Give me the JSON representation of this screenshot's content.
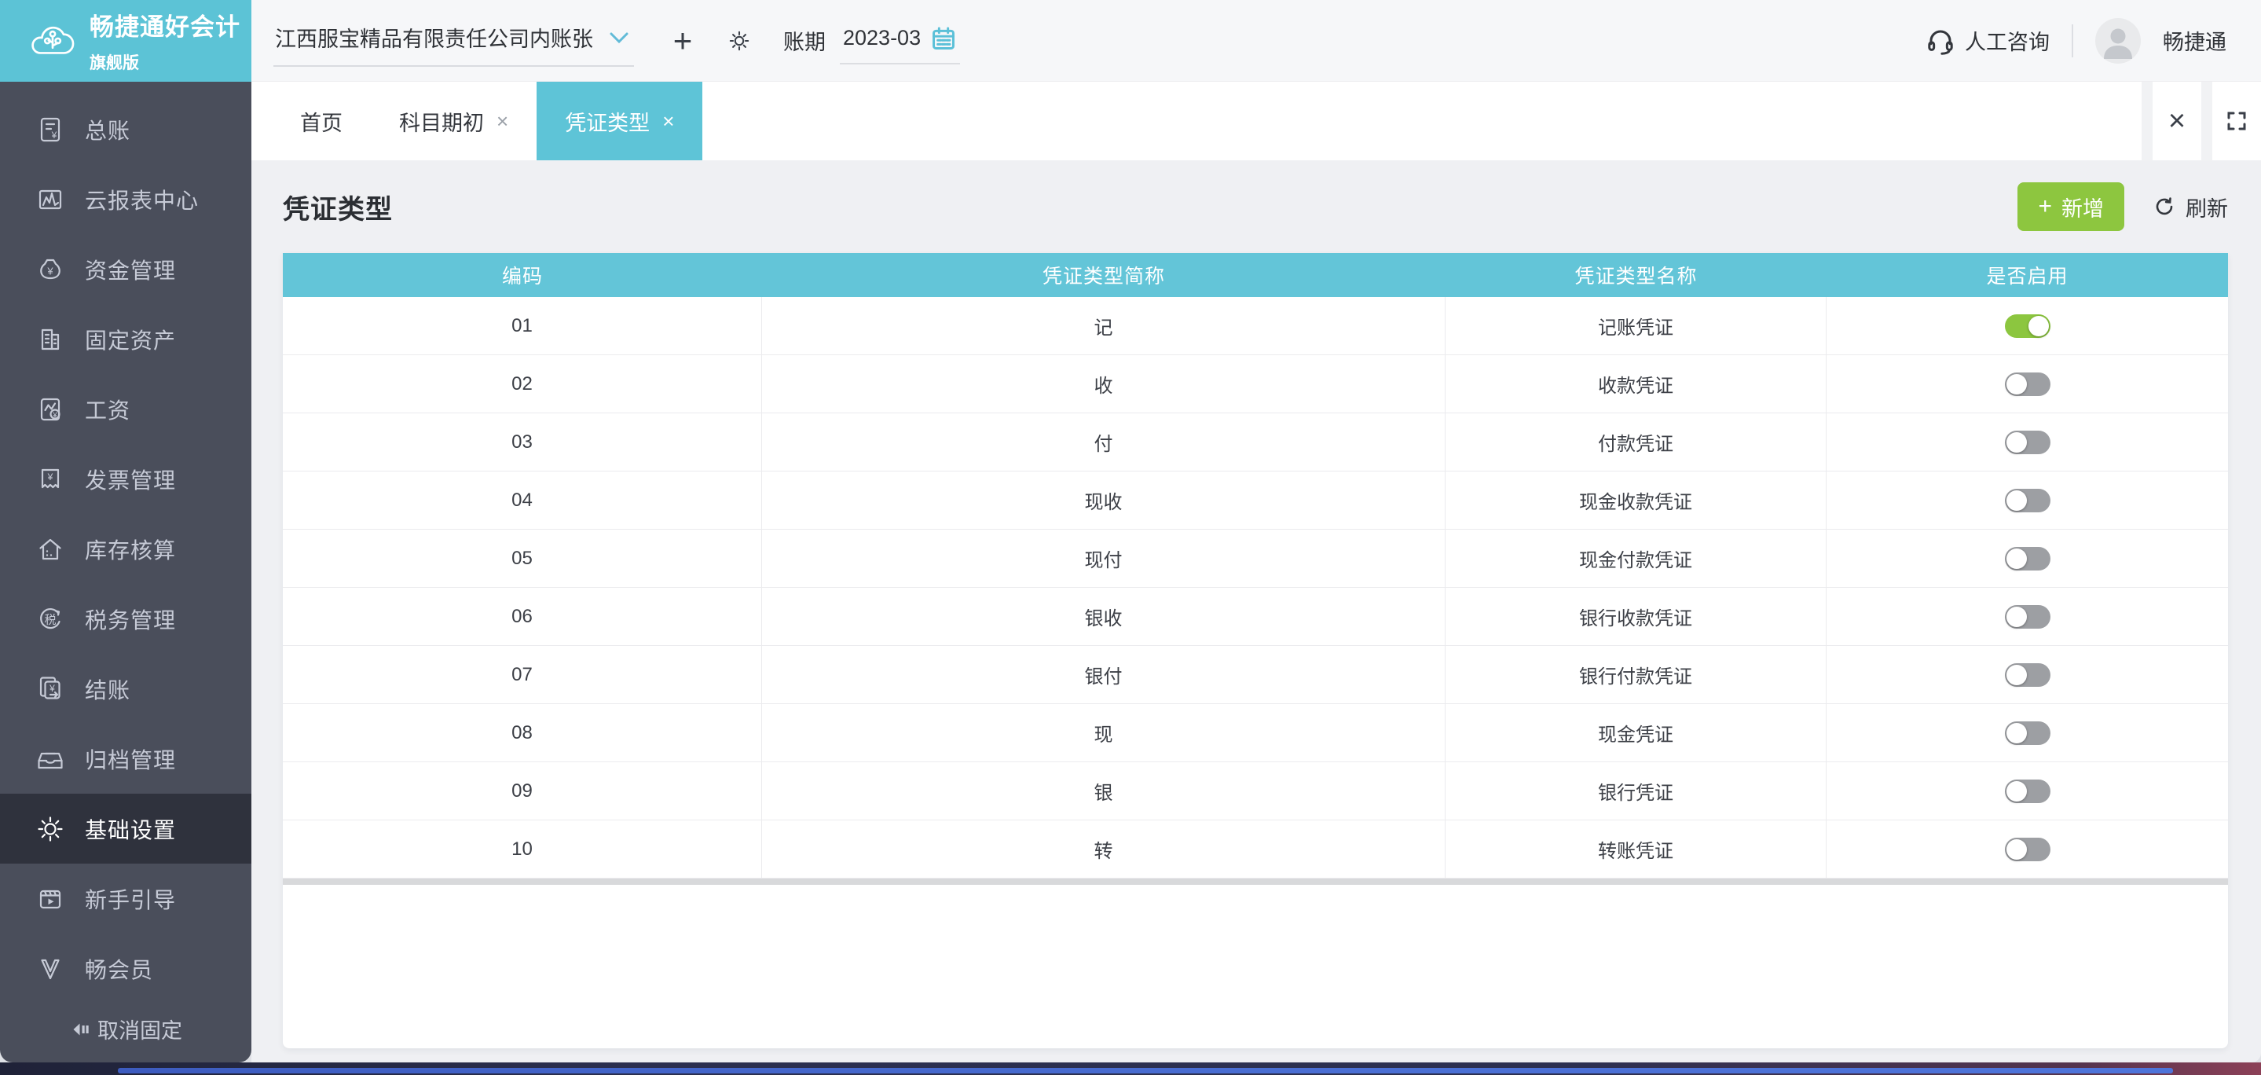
{
  "brand": {
    "name": "畅捷通好会计",
    "edition": "旗舰版",
    "teal": "#5cc3d6"
  },
  "topbar": {
    "company": "江西服宝精品有限责任公司内账张",
    "period_label": "账期",
    "period_value": "2023-03",
    "support_label": "人工咨询",
    "username": "畅捷通"
  },
  "icons": {
    "plus": "+",
    "close": "×",
    "cloud-logo-icon": "cloud",
    "chevron-down-icon": "v",
    "gear-icon": "gear",
    "calendar-icon": "calendar",
    "headset-icon": "headset",
    "avatar-icon": "person",
    "expand-icon": "fullscreen-corners",
    "refresh-icon": "circular-arrow",
    "unpin-icon": "back-arrow-pause"
  },
  "tabs": [
    {
      "label": "首页",
      "closable": false,
      "active": false
    },
    {
      "label": "科目期初",
      "closable": true,
      "active": false
    },
    {
      "label": "凭证类型",
      "closable": true,
      "active": true
    }
  ],
  "sidebar": {
    "items": [
      {
        "key": "general-ledger",
        "label": "总账",
        "icon": "ledger-icon",
        "selected": false
      },
      {
        "key": "cloud-reports",
        "label": "云报表中心",
        "icon": "cloud-report-icon",
        "selected": false
      },
      {
        "key": "funds",
        "label": "资金管理",
        "icon": "funds-icon",
        "selected": false
      },
      {
        "key": "fixed-assets",
        "label": "固定资产",
        "icon": "fixed-assets-icon",
        "selected": false
      },
      {
        "key": "salary",
        "label": "工资",
        "icon": "salary-icon",
        "selected": false
      },
      {
        "key": "invoices",
        "label": "发票管理",
        "icon": "invoice-icon",
        "selected": false
      },
      {
        "key": "inventory",
        "label": "库存核算",
        "icon": "inventory-icon",
        "selected": false
      },
      {
        "key": "tax",
        "label": "税务管理",
        "icon": "tax-icon",
        "selected": false
      },
      {
        "key": "closing",
        "label": "结账",
        "icon": "closing-icon",
        "selected": false
      },
      {
        "key": "archive",
        "label": "归档管理",
        "icon": "archive-icon",
        "selected": false
      },
      {
        "key": "basic-settings",
        "label": "基础设置",
        "icon": "settings-icon",
        "selected": true
      },
      {
        "key": "beginner-guide",
        "label": "新手引导",
        "icon": "guide-icon",
        "selected": false
      },
      {
        "key": "member",
        "label": "畅会员",
        "icon": "member-icon",
        "selected": false
      }
    ],
    "unpin_label": "取消固定"
  },
  "page": {
    "title": "凭证类型",
    "add_label": "新增",
    "refresh_label": "刷新"
  },
  "table": {
    "headers": [
      "编码",
      "凭证类型简称",
      "凭证类型名称",
      "是否启用"
    ],
    "rows": [
      {
        "code": "01",
        "short": "记",
        "name": "记账凭证",
        "enabled": true
      },
      {
        "code": "02",
        "short": "收",
        "name": "收款凭证",
        "enabled": false
      },
      {
        "code": "03",
        "short": "付",
        "name": "付款凭证",
        "enabled": false
      },
      {
        "code": "04",
        "short": "现收",
        "name": "现金收款凭证",
        "enabled": false
      },
      {
        "code": "05",
        "short": "现付",
        "name": "现金付款凭证",
        "enabled": false
      },
      {
        "code": "06",
        "short": "银收",
        "name": "银行收款凭证",
        "enabled": false
      },
      {
        "code": "07",
        "short": "银付",
        "name": "银行付款凭证",
        "enabled": false
      },
      {
        "code": "08",
        "short": "现",
        "name": "现金凭证",
        "enabled": false
      },
      {
        "code": "09",
        "short": "银",
        "name": "银行凭证",
        "enabled": false
      },
      {
        "code": "10",
        "short": "转",
        "name": "转账凭证",
        "enabled": false
      }
    ]
  },
  "colors": {
    "teal": "#5ec4d7",
    "table_header": "#63c5d8",
    "sidebar_bg": "#4a4e5b",
    "sidebar_selected": "#2f323d",
    "green": "#8dc63f",
    "toggle_off": "#9d9fa3",
    "content_bg": "#eff0f3"
  }
}
